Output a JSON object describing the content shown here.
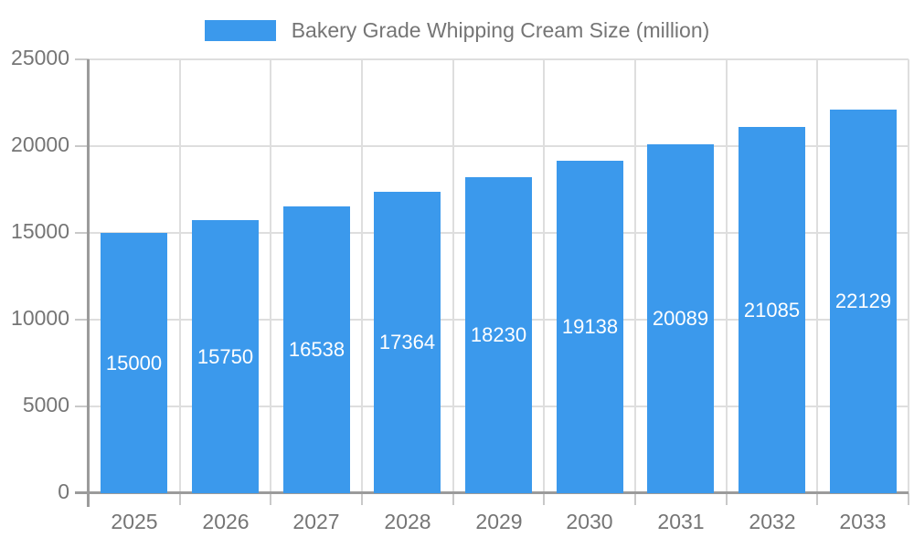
{
  "legend": {
    "label": "Bakery Grade Whipping Cream Size (million)"
  },
  "chart_data": {
    "type": "bar",
    "title": "Bakery Grade Whipping Cream Size (million)",
    "categories": [
      "2025",
      "2026",
      "2027",
      "2028",
      "2029",
      "2030",
      "2031",
      "2032",
      "2033"
    ],
    "series": [
      {
        "name": "Bakery Grade Whipping Cream Size (million)",
        "values": [
          15000,
          15750,
          16538,
          17364,
          18230,
          19138,
          20089,
          21085,
          22129
        ]
      }
    ],
    "bar_labels": [
      "15000",
      "15750",
      "16538",
      "17364",
      "18230",
      "19138",
      "20089",
      "21085",
      "22129"
    ],
    "bar_label_position": "inside-middle",
    "xlabel": "",
    "ylabel": "",
    "ylim": [
      0,
      25000
    ],
    "yticks": [
      0,
      5000,
      10000,
      15000,
      20000,
      25000
    ],
    "ytick_labels": [
      "0",
      "5000",
      "10000",
      "15000",
      "20000",
      "25000"
    ],
    "grid": true,
    "legend_position": "top-center",
    "colors": {
      "bar": "#3B99EC",
      "grid": "#DEDEDE",
      "axis": "#9B9B9B",
      "tick": "#C9C9C9",
      "text": "#757575",
      "bar_label": "#FFFFFF",
      "background": "#FFFFFF"
    }
  }
}
